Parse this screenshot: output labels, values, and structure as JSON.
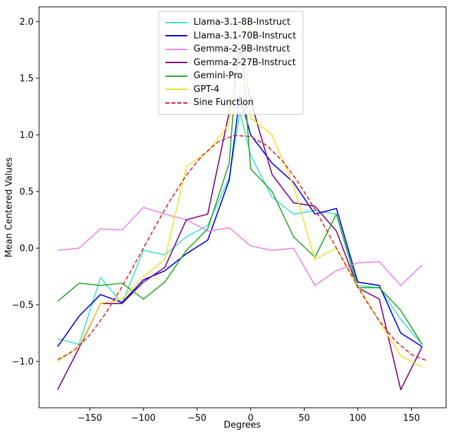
{
  "chart_data": {
    "type": "line",
    "title": "",
    "xlabel": "Degrees",
    "ylabel": "Mean Centered Values",
    "xlim": [
      -197.3,
      182.3
    ],
    "ylim": [
      -1.41,
      2.13
    ],
    "x_ticks": [
      -150,
      -100,
      -50,
      0,
      50,
      100,
      150
    ],
    "y_ticks": [
      -1.0,
      -0.5,
      0.0,
      0.5,
      1.0,
      1.5,
      2.0
    ],
    "grid": false,
    "legend": {
      "position": "upper-center-right",
      "border_color": "#cccccc",
      "background": "#ffffff"
    },
    "x": [
      -180,
      -160,
      -140,
      -120,
      -100,
      -80,
      -60,
      -40,
      -20,
      -10,
      0,
      20,
      40,
      60,
      80,
      100,
      120,
      140,
      160
    ],
    "series": [
      {
        "name": "Llama-3.1-8B-Instruct",
        "color": "#40E0D0",
        "style": "solid",
        "values": [
          -0.8,
          -0.85,
          -0.26,
          -0.49,
          -0.02,
          -0.06,
          0.1,
          0.2,
          0.62,
          1.2,
          0.82,
          0.45,
          0.3,
          0.33,
          0.3,
          -0.33,
          -0.35,
          -0.63,
          -0.85
        ]
      },
      {
        "name": "Llama-3.1-70B-Instruct",
        "color": "#0000EE",
        "style": "solid",
        "values": [
          -0.87,
          -0.6,
          -0.41,
          -0.48,
          -0.28,
          -0.2,
          -0.05,
          0.07,
          0.6,
          1.35,
          1.0,
          0.75,
          0.58,
          0.3,
          0.35,
          -0.3,
          -0.33,
          -0.75,
          -0.87
        ]
      },
      {
        "name": "Gemma-2-9B-Instruct",
        "color": "#EE82EE",
        "style": "solid",
        "values": [
          -0.02,
          0.0,
          0.17,
          0.16,
          0.36,
          0.3,
          0.25,
          0.15,
          0.18,
          0.1,
          0.02,
          -0.02,
          0.0,
          -0.33,
          -0.2,
          -0.13,
          -0.12,
          -0.33,
          -0.15
        ]
      },
      {
        "name": "Gemma-2-27B-Instruct",
        "color": "#800080",
        "style": "solid",
        "values": [
          -1.25,
          -0.88,
          -0.49,
          -0.49,
          -0.3,
          -0.17,
          0.25,
          0.3,
          1.2,
          1.75,
          1.3,
          0.65,
          0.4,
          0.37,
          0.15,
          -0.35,
          -0.45,
          -1.25,
          -0.87
        ]
      },
      {
        "name": "Gemini-Pro",
        "color": "#2CA82C",
        "style": "solid",
        "values": [
          -0.47,
          -0.31,
          -0.33,
          -0.31,
          -0.45,
          -0.3,
          -0.02,
          0.17,
          0.75,
          1.97,
          0.7,
          0.5,
          0.1,
          -0.08,
          0.3,
          -0.35,
          -0.35,
          -0.55,
          -0.85
        ]
      },
      {
        "name": "GPT-4",
        "color": "#F0E130",
        "style": "solid",
        "values": [
          -1.0,
          -0.87,
          -0.49,
          -0.45,
          -0.25,
          -0.1,
          0.72,
          0.85,
          1.1,
          1.93,
          1.15,
          1.0,
          0.55,
          -0.1,
          0.0,
          -0.33,
          -0.65,
          -0.95,
          -1.05
        ]
      },
      {
        "name": "Sine Function",
        "color": "#D62728",
        "style": "dashed",
        "x": [
          -180,
          -165,
          -150,
          -135,
          -120,
          -105,
          -90,
          -75,
          -60,
          -45,
          -30,
          -15,
          0,
          15,
          30,
          45,
          60,
          75,
          90,
          105,
          120,
          135,
          150,
          165
        ],
        "values": [
          -0.985,
          -0.906,
          -0.766,
          -0.574,
          -0.342,
          -0.087,
          0.174,
          0.423,
          0.643,
          0.819,
          0.94,
          0.996,
          0.985,
          0.906,
          0.766,
          0.574,
          0.342,
          0.087,
          -0.174,
          -0.423,
          -0.643,
          -0.819,
          -0.94,
          -0.996
        ]
      }
    ]
  }
}
